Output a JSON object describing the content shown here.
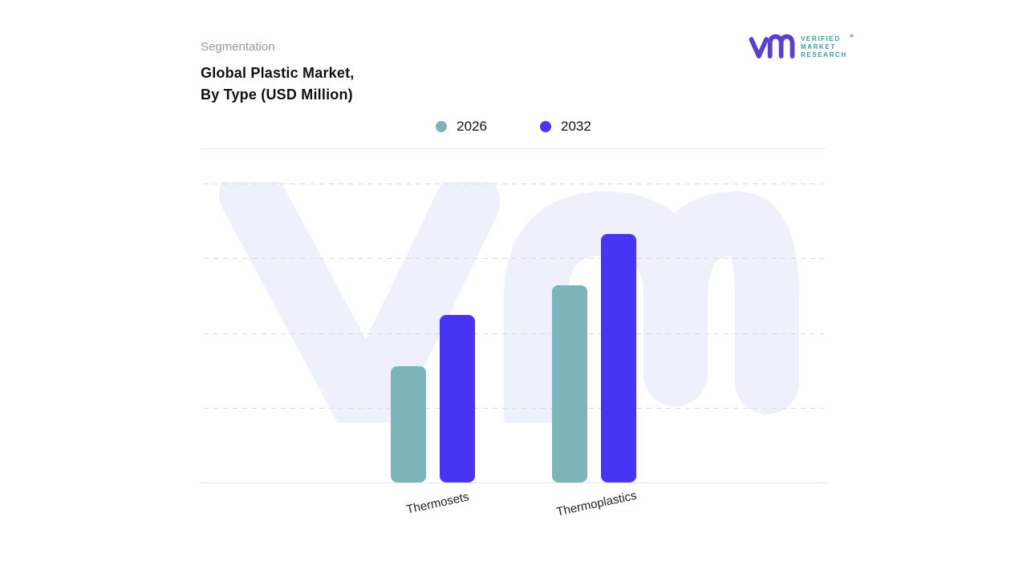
{
  "header": {
    "eyebrow": "Segmentation",
    "title_line1": "Global Plastic Market,",
    "title_line2": "By Type (USD Million)"
  },
  "logo": {
    "brand": "Verified Market Research",
    "lines": [
      "VERIFIED",
      "MARKET",
      "RESEARCH"
    ],
    "registered_mark": "®",
    "glyph_color": "#5a3fd6",
    "text_color": "#2fa09c"
  },
  "legend": [
    {
      "label": "2026",
      "color": "#7cb4ba"
    },
    {
      "label": "2032",
      "color": "#4834f4"
    }
  ],
  "chart_data": {
    "type": "bar",
    "title": "Global Plastic Market, By Type (USD Million)",
    "categories": [
      "Thermosets",
      "Thermoplastics"
    ],
    "series": [
      {
        "name": "2026",
        "color": "#7cb4ba",
        "values": [
          39,
          66
        ]
      },
      {
        "name": "2032",
        "color": "#4834f4",
        "values": [
          56,
          83
        ]
      }
    ],
    "xlabel": "",
    "ylabel": "",
    "ylim": [
      0,
      100
    ],
    "gridline_values": [
      25,
      50,
      75,
      100
    ],
    "y_axis_labels_visible": false,
    "gridlines": "dashed-horizontal",
    "legend_position": "top-center",
    "note": "No numeric y-axis labels shown in source; values estimated from gridline positions (top gridline = 100)."
  }
}
